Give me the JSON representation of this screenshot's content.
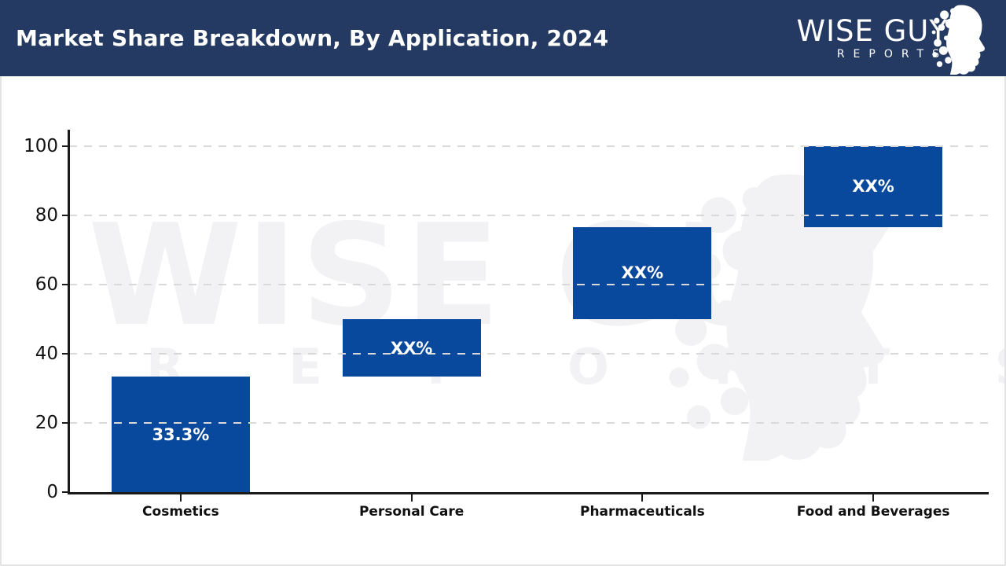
{
  "header": {
    "title": "Market Share Breakdown, By Application, 2024",
    "logo": {
      "line1": "WISE GUY",
      "line2": "REPORTS"
    }
  },
  "theme": {
    "header_bg": "#253a63",
    "bar_color": "#09499d",
    "gridline_color": "#d9d9d9",
    "axis_color": "#1a1a1a",
    "watermark_color": "#f2f2f4"
  },
  "watermark": {
    "line1": "WISE GUY",
    "line2": "R E P O R T S"
  },
  "chart_data": {
    "type": "bar",
    "subtype": "waterfall",
    "title": "Market Share Breakdown, By Application, 2024",
    "xlabel": "",
    "ylabel": "",
    "categories": [
      "Cosmetics",
      "Personal Care",
      "Pharmaceuticals",
      "Food and Beverages"
    ],
    "segments": [
      {
        "category": "Cosmetics",
        "start": 0,
        "end": 33.3,
        "label": "33.3%"
      },
      {
        "category": "Personal Care",
        "start": 33.3,
        "end": 50,
        "label": "XX%"
      },
      {
        "category": "Pharmaceuticals",
        "start": 50,
        "end": 76.7,
        "label": "XX%"
      },
      {
        "category": "Food and Beverages",
        "start": 76.7,
        "end": 100,
        "label": "XX%"
      }
    ],
    "yticks": [
      0,
      20,
      40,
      60,
      80,
      100
    ],
    "ylim": [
      0,
      105
    ],
    "grid": "horizontal-dashed, drawn over bars",
    "legend": "none",
    "bar_color": "#09499d"
  }
}
